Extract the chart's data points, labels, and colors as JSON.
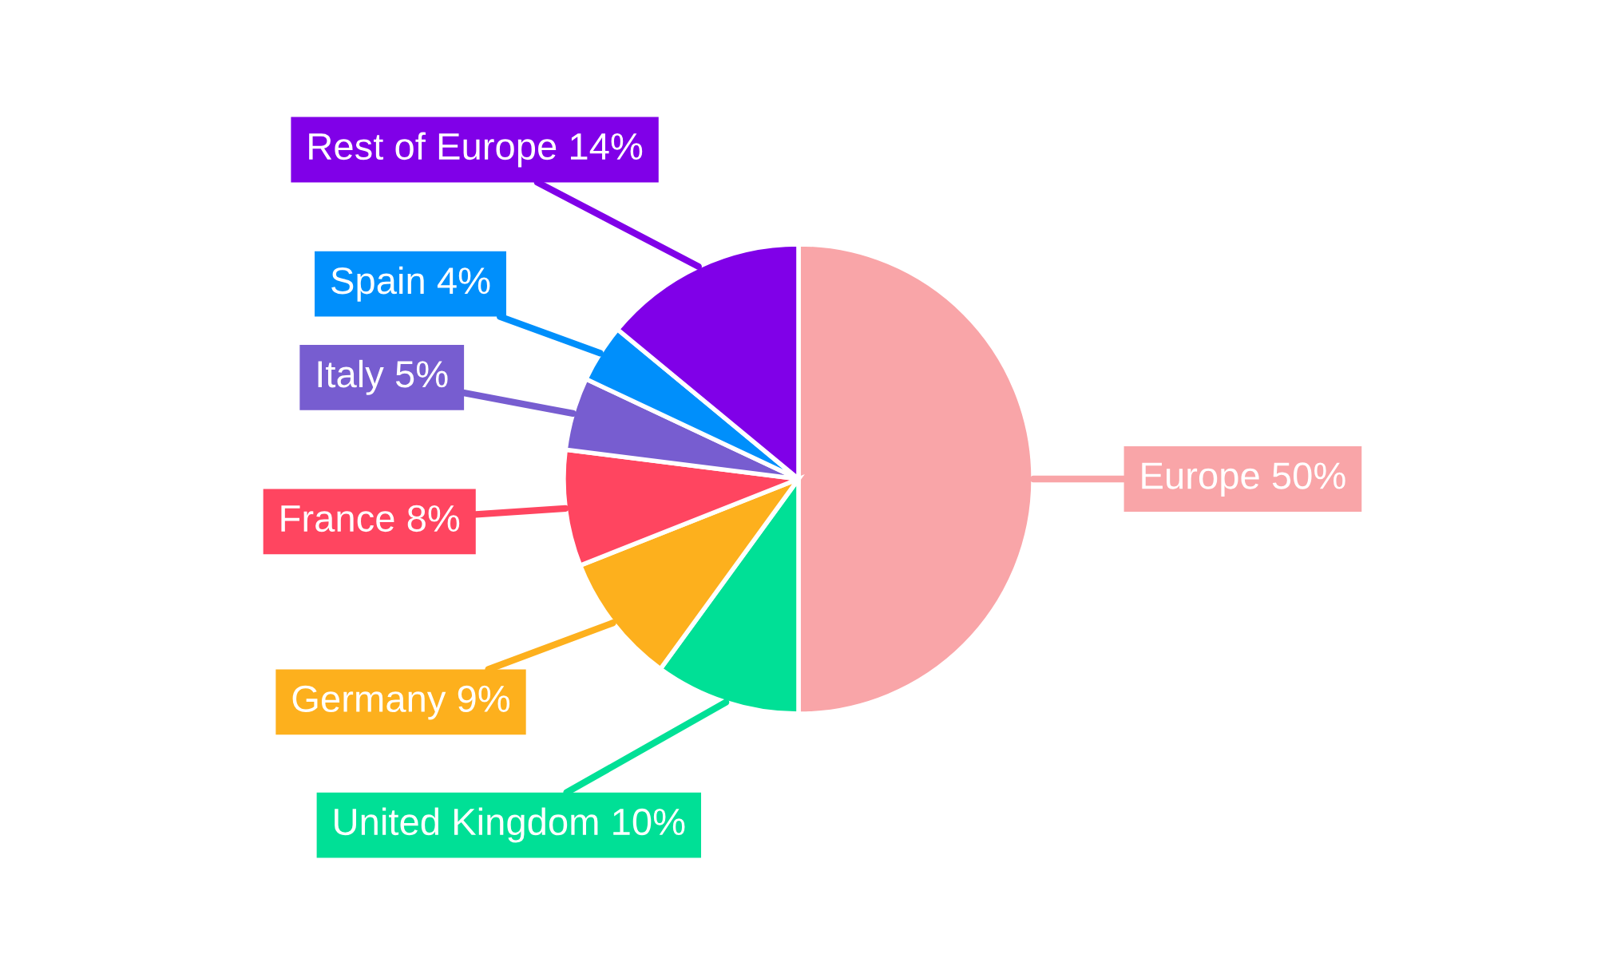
{
  "chart_data": {
    "type": "pie",
    "categories": [
      "Europe",
      "United Kingdom",
      "Germany",
      "France",
      "Italy",
      "Spain",
      "Rest of Europe"
    ],
    "values": [
      50,
      10,
      9,
      8,
      5,
      4,
      14
    ],
    "colors": [
      "#f9a5a8",
      "#00e096",
      "#fdb01d",
      "#ff4560",
      "#775dd0",
      "#008ffb",
      "#8000e8"
    ],
    "value_labels": [
      "50%",
      "10%",
      "9%",
      "8%",
      "5%",
      "4%",
      "14%"
    ]
  }
}
